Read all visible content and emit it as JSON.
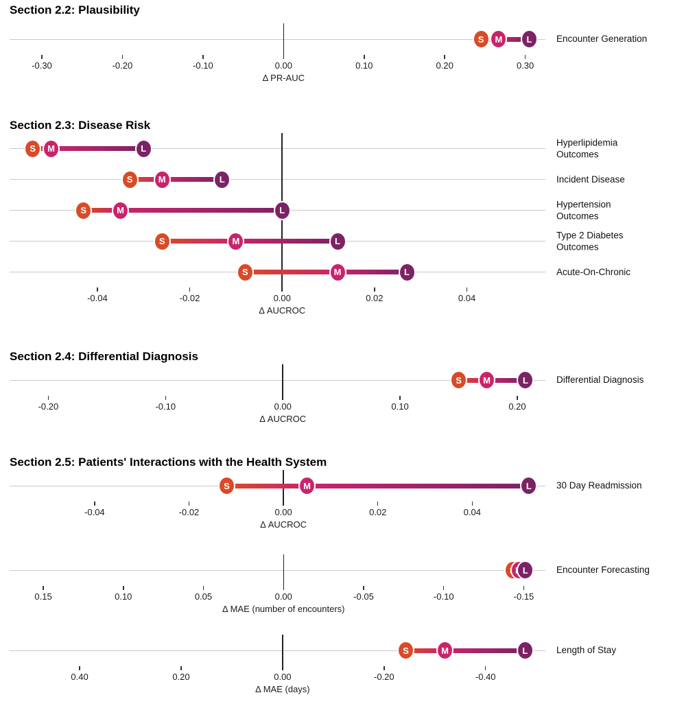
{
  "colors": {
    "s_marker": "#D84B27",
    "m_marker": "#C9246B",
    "l_marker": "#7B2365",
    "row_line": "#C9C9C9",
    "zero_line": "#222222",
    "tick_mark": "#333333",
    "text": "#000000"
  },
  "marker_letters": {
    "s": "S",
    "m": "M",
    "l": "L"
  },
  "chart_data": [
    {
      "type": "dumbbell",
      "section_title": "Section 2.2: Plausibility",
      "xlabel": "Δ PR-AUC",
      "xlim": [
        -0.34,
        0.325
      ],
      "xticks": [
        -0.3,
        -0.2,
        -0.1,
        0.0,
        0.1,
        0.2,
        0.3
      ],
      "xtick_labels": [
        "-0.30",
        "-0.20",
        "-0.10",
        "0.00",
        "0.10",
        "0.20",
        "0.30"
      ],
      "rows": [
        {
          "label": "Encounter Generation",
          "S": 0.245,
          "M": 0.267,
          "L": 0.305
        }
      ]
    },
    {
      "type": "dumbbell",
      "section_title": "Section 2.3: Disease Risk",
      "xlabel": "Δ AUCROC",
      "xlim": [
        -0.059,
        0.057
      ],
      "xticks": [
        -0.04,
        -0.02,
        0.0,
        0.02,
        0.04
      ],
      "xtick_labels": [
        "-0.04",
        "-0.02",
        "0.00",
        "0.02",
        "0.04"
      ],
      "rows": [
        {
          "label": "Hyperlipidemia\nOutcomes",
          "S": -0.054,
          "M": -0.05,
          "L": -0.03
        },
        {
          "label": "Incident Disease",
          "S": -0.033,
          "M": -0.026,
          "L": -0.013
        },
        {
          "label": "Hypertension\nOutcomes",
          "S": -0.043,
          "M": -0.035,
          "L": 0.0
        },
        {
          "label": "Type 2 Diabetes\nOutcomes",
          "S": -0.026,
          "M": -0.01,
          "L": 0.012
        },
        {
          "label": "Acute-On-Chronic",
          "S": -0.008,
          "M": 0.012,
          "L": 0.027
        }
      ]
    },
    {
      "type": "dumbbell",
      "section_title": "Section 2.4: Differential Diagnosis",
      "xlabel": "Δ AUCROC",
      "xlim": [
        -0.233,
        0.224
      ],
      "xticks": [
        -0.2,
        -0.1,
        0.0,
        0.1,
        0.2
      ],
      "xtick_labels": [
        "-0.20",
        "-0.10",
        "0.00",
        "0.10",
        "0.20"
      ],
      "rows": [
        {
          "label": "Differential Diagnosis",
          "S": 0.15,
          "M": 0.174,
          "L": 0.207
        }
      ]
    },
    {
      "type": "dumbbell",
      "section_title": "Section 2.5: Patients' Interactions with the Health System",
      "xlabel": "Δ AUCROC",
      "xlim": [
        -0.058,
        0.0555
      ],
      "xticks": [
        -0.04,
        -0.02,
        0.0,
        0.02,
        0.04
      ],
      "xtick_labels": [
        "-0.04",
        "-0.02",
        "0.00",
        "0.02",
        "0.04"
      ],
      "rows": [
        {
          "label": "30 Day Readmission",
          "S": -0.012,
          "M": 0.005,
          "L": 0.052
        }
      ]
    },
    {
      "type": "dumbbell",
      "section_title": "",
      "xlabel": "Δ MAE (number of encounters)",
      "xlim": [
        0.171,
        -0.1635
      ],
      "xticks": [
        0.15,
        0.1,
        0.05,
        0.0,
        -0.05,
        -0.1,
        -0.15
      ],
      "xtick_labels": [
        "0.15",
        "0.10",
        "0.05",
        "0.00",
        "-0.05",
        "-0.10",
        "-0.15"
      ],
      "rows": [
        {
          "label": "Encounter Forecasting",
          "S": -0.143,
          "M": -0.147,
          "L": -0.151
        }
      ]
    },
    {
      "type": "dumbbell",
      "section_title": "",
      "xlabel": "Δ MAE (days)",
      "xlim": [
        0.538,
        -0.518
      ],
      "xticks": [
        0.4,
        0.2,
        0.0,
        -0.2,
        -0.4
      ],
      "xtick_labels": [
        "0.40",
        "0.20",
        "0.00",
        "-0.20",
        "-0.40"
      ],
      "rows": [
        {
          "label": "Length of Stay",
          "S": -0.243,
          "M": -0.32,
          "L": -0.478
        }
      ]
    }
  ]
}
